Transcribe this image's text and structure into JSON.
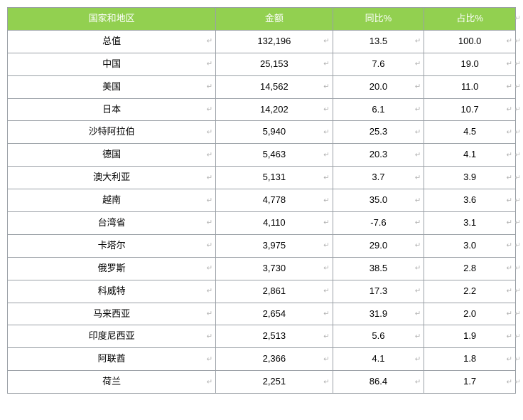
{
  "table": {
    "header_bg": "#92d050",
    "header_color": "#ffffff",
    "border_color": "#9aa0a6",
    "paragraph_mark": "↵",
    "row_anchor": "↵",
    "columns": [
      {
        "label": "国家和地区",
        "width": "41%"
      },
      {
        "label": "金额",
        "width": "23%"
      },
      {
        "label": "同比%",
        "width": "18%"
      },
      {
        "label": "占比%",
        "width": "18%"
      }
    ],
    "rows": [
      {
        "region": "总值",
        "amount": "132,196",
        "yoy": "13.5",
        "share": "100.0"
      },
      {
        "region": "中国",
        "amount": "25,153",
        "yoy": "7.6",
        "share": "19.0"
      },
      {
        "region": "美国",
        "amount": "14,562",
        "yoy": "20.0",
        "share": "11.0"
      },
      {
        "region": "日本",
        "amount": "14,202",
        "yoy": "6.1",
        "share": "10.7"
      },
      {
        "region": "沙特阿拉伯",
        "amount": "5,940",
        "yoy": "25.3",
        "share": "4.5"
      },
      {
        "region": "德国",
        "amount": "5,463",
        "yoy": "20.3",
        "share": "4.1"
      },
      {
        "region": "澳大利亚",
        "amount": "5,131",
        "yoy": "3.7",
        "share": "3.9"
      },
      {
        "region": "越南",
        "amount": "4,778",
        "yoy": "35.0",
        "share": "3.6"
      },
      {
        "region": "台湾省",
        "amount": "4,110",
        "yoy": "-7.6",
        "share": "3.1"
      },
      {
        "region": "卡塔尔",
        "amount": "3,975",
        "yoy": "29.0",
        "share": "3.0"
      },
      {
        "region": "俄罗斯",
        "amount": "3,730",
        "yoy": "38.5",
        "share": "2.8"
      },
      {
        "region": "科威特",
        "amount": "2,861",
        "yoy": "17.3",
        "share": "2.2"
      },
      {
        "region": "马来西亚",
        "amount": "2,654",
        "yoy": "31.9",
        "share": "2.0"
      },
      {
        "region": "印度尼西亚",
        "amount": "2,513",
        "yoy": "5.6",
        "share": "1.9"
      },
      {
        "region": "阿联酋",
        "amount": "2,366",
        "yoy": "4.1",
        "share": "1.8"
      },
      {
        "region": "荷兰",
        "amount": "2,251",
        "yoy": "86.4",
        "share": "1.7"
      }
    ]
  }
}
